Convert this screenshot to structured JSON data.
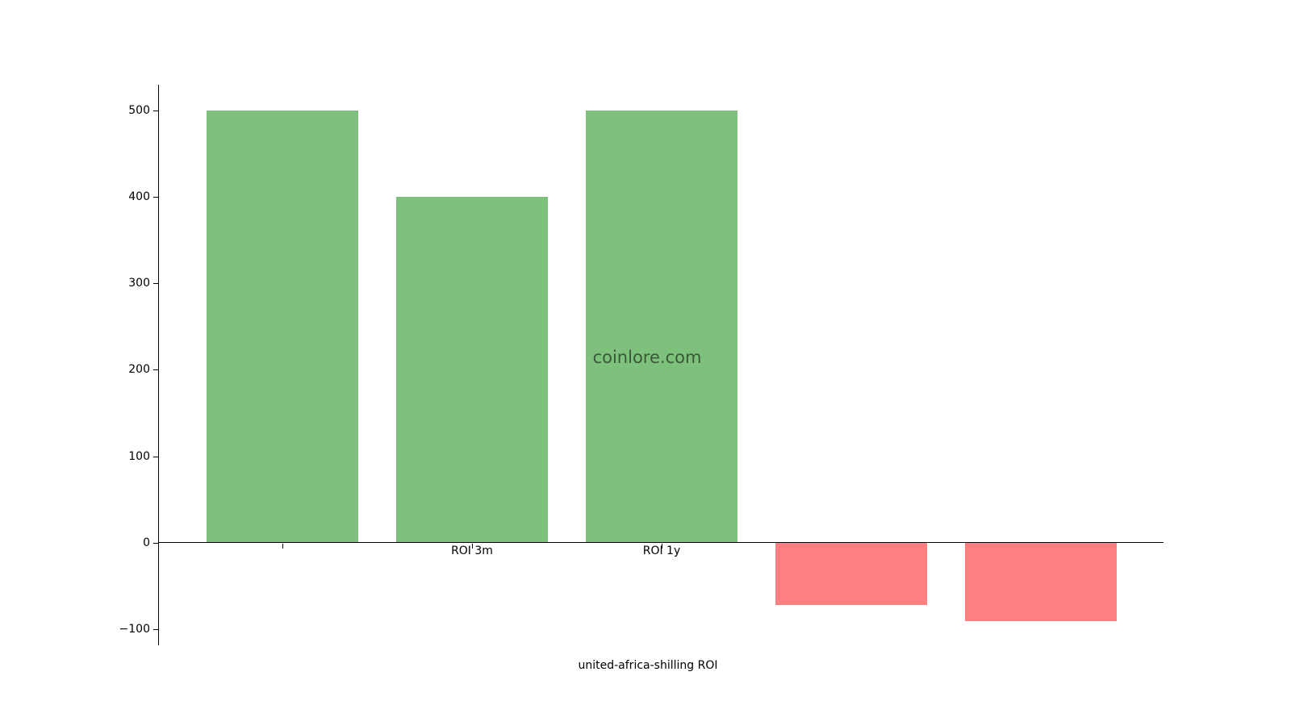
{
  "chart_data": {
    "type": "bar",
    "title": "united-africa-shilling ROI",
    "title_position": "bottom",
    "categories": [
      "",
      "ROI 3m",
      "ROI 1y",
      "",
      ""
    ],
    "values": [
      500,
      400,
      500,
      -72,
      -90
    ],
    "ytick_values": [
      500,
      400,
      300,
      200,
      100,
      0,
      -100
    ],
    "ytick_labels": [
      "500",
      "400",
      "300",
      "200",
      "100",
      "0",
      "−100"
    ],
    "ylim": [
      -119.5,
      529.5
    ],
    "grid": false,
    "legend": false,
    "colors": {
      "positive_bar": "#7ec17c",
      "negative_bar": "#ff8080",
      "axis": "#000000",
      "tick_text": "#000000"
    }
  },
  "watermark": {
    "text": "coinlore.com",
    "color": "rgba(0,0,0,0.55)"
  }
}
